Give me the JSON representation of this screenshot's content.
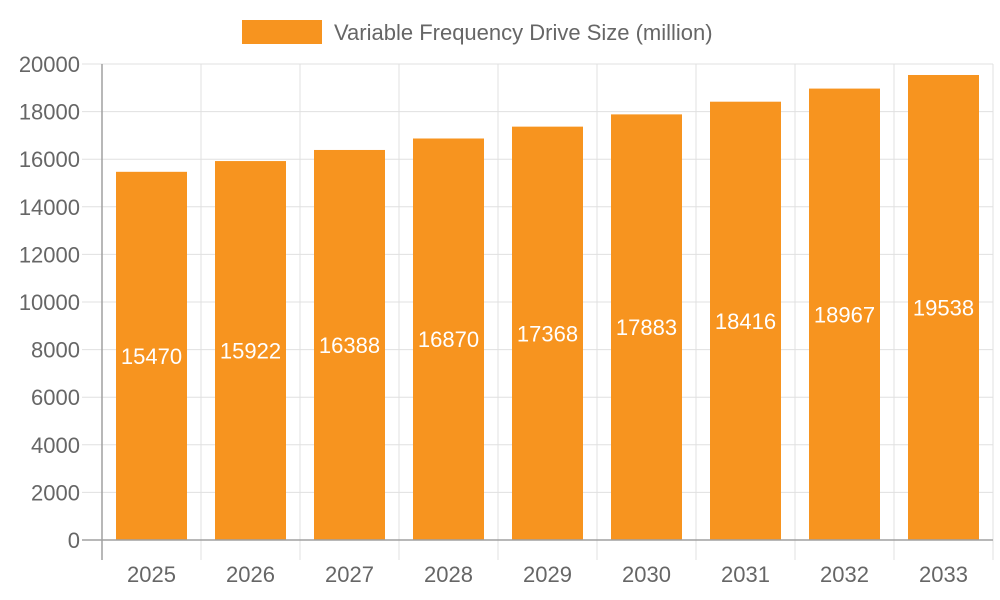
{
  "chart_data": {
    "type": "bar",
    "title": "",
    "xlabel": "",
    "ylabel": "",
    "categories": [
      "2025",
      "2026",
      "2027",
      "2028",
      "2029",
      "2030",
      "2031",
      "2032",
      "2033"
    ],
    "series": [
      {
        "name": "Variable Frequency Drive Size (million)",
        "values": [
          15470,
          15922,
          16388,
          16870,
          17368,
          17883,
          18416,
          18967,
          19538
        ],
        "color": "#f7941f"
      }
    ],
    "ylim": [
      0,
      20000
    ],
    "yticks": [
      "0",
      "2000",
      "4000",
      "6000",
      "8000",
      "10000",
      "12000",
      "14000",
      "16000",
      "18000",
      "20000"
    ],
    "grid": true,
    "legend": "top-center",
    "data_labels": true,
    "colors": {
      "text": "#666666",
      "grid": "#e0e0e0",
      "axis": "#a0a0a0",
      "label": "#ffffff"
    }
  }
}
